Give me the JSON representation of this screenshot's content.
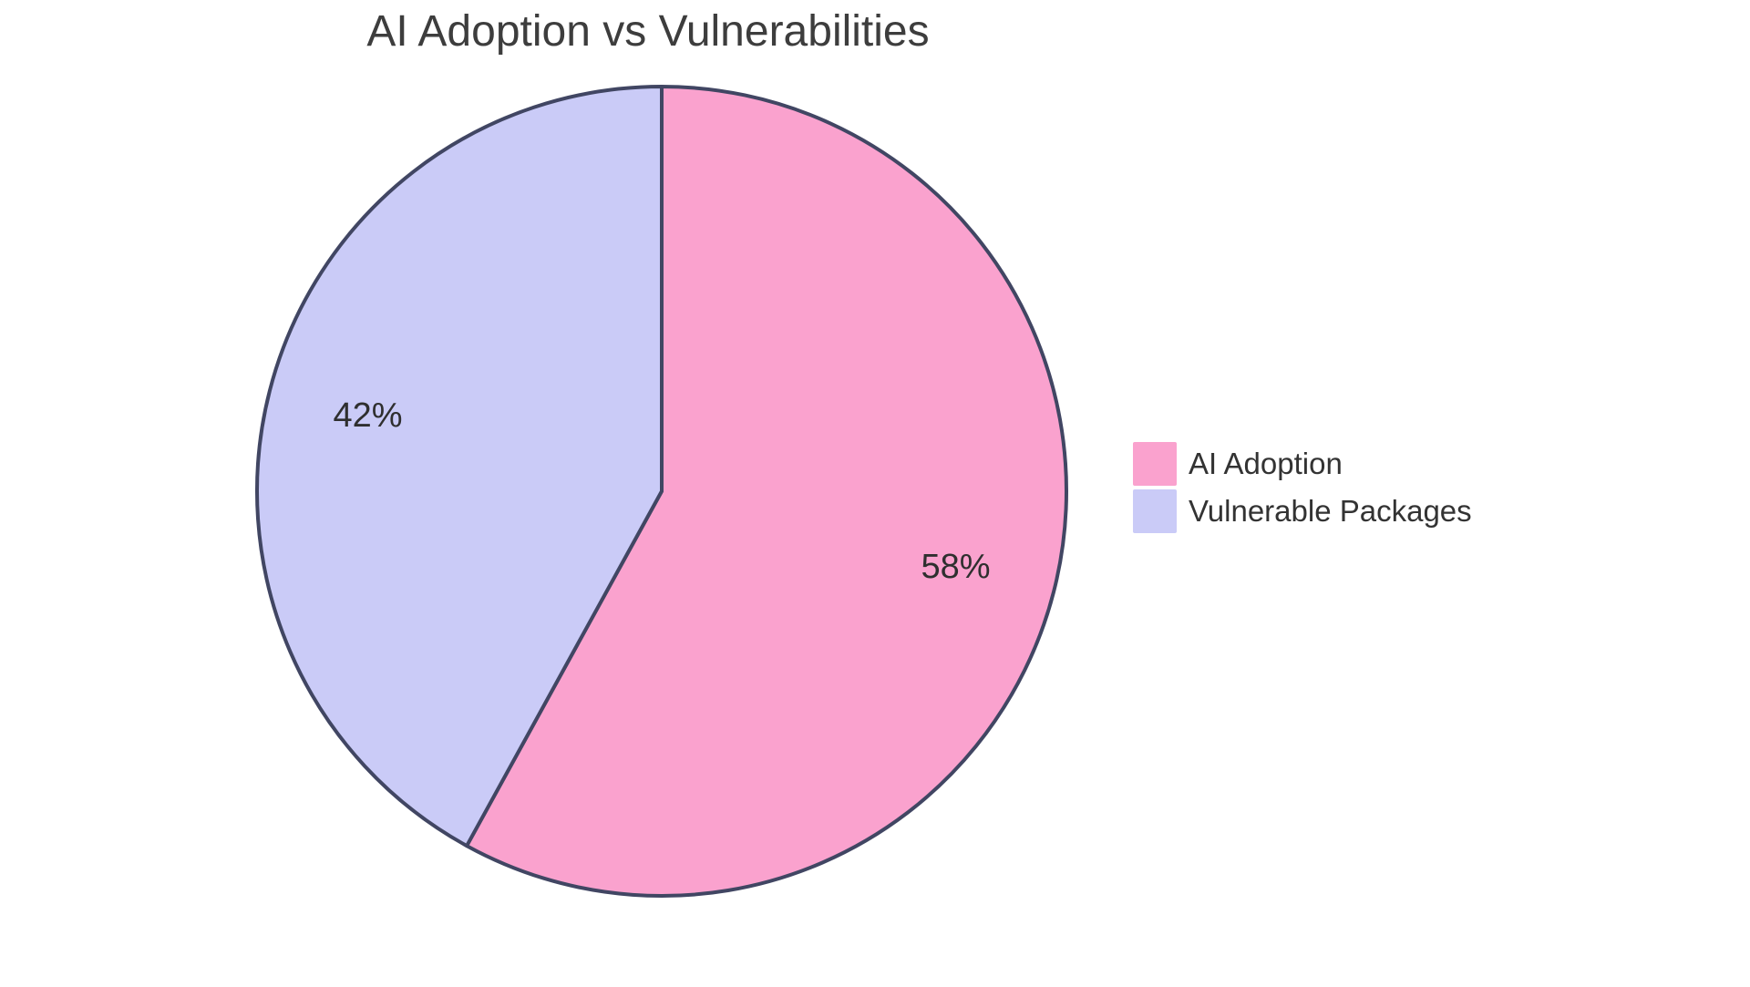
{
  "page": {
    "background_color": "#FFFFFF"
  },
  "chart_data": {
    "type": "pie",
    "title": "AI Adoption vs Vulnerabilities",
    "categories": [
      "AI Adoption",
      "Vulnerable Packages"
    ],
    "values": [
      58,
      42
    ],
    "slice_labels": [
      "58%",
      "42%"
    ],
    "colors": [
      "#FAA2CE",
      "#CACBF7"
    ],
    "stroke_color": "#414663",
    "title_color": "#3D3D3D",
    "label_color": "#2F2F2F",
    "legend_text_color": "#333333",
    "start_angle_deg": 0,
    "direction": "clockwise",
    "legend_position": "right",
    "grid": false
  }
}
